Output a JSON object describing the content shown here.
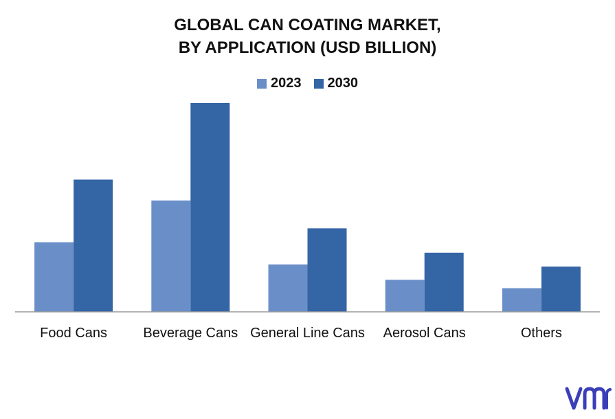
{
  "chart_data": {
    "type": "bar",
    "title_lines": [
      "GLOBAL CAN COATING MARKET,",
      "BY APPLICATION (USD BILLION)"
    ],
    "categories": [
      "Food Cans",
      "Beverage Cans",
      "General Line Cans",
      "Aerosol Cans",
      "Others"
    ],
    "series": [
      {
        "name": "2023",
        "color": "#6A8FC8",
        "values": [
          1.0,
          1.6,
          0.68,
          0.46,
          0.34
        ]
      },
      {
        "name": "2030",
        "color": "#3465A5",
        "values": [
          1.9,
          3.0,
          1.2,
          0.85,
          0.65
        ]
      }
    ],
    "ylim": [
      0,
      3.0
    ],
    "grid": false,
    "legend_position": "top-center"
  },
  "logo": {
    "text": "vmr",
    "color": "#3A3FB8"
  }
}
